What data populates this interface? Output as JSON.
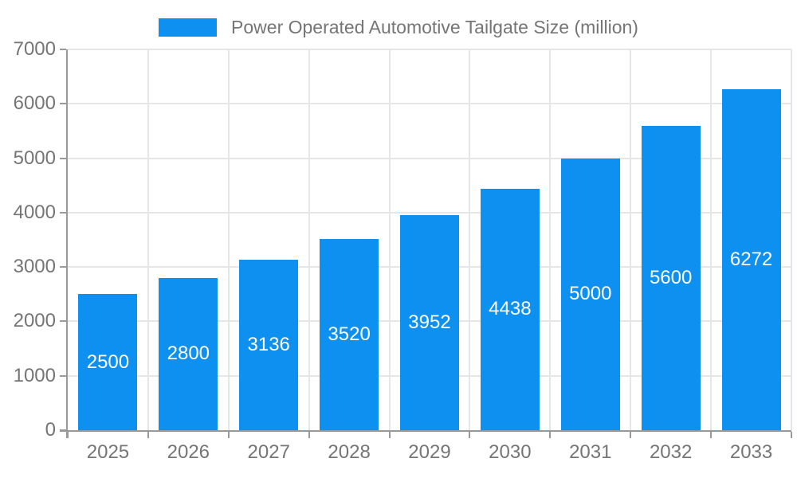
{
  "chart_data": {
    "type": "bar",
    "title": "Power Operated Automotive Tailgate Size (million)",
    "legend": "Power Operated Automotive Tailgate Size (million)",
    "legend_position": "top-center",
    "categories": [
      "2025",
      "2026",
      "2027",
      "2028",
      "2029",
      "2030",
      "2031",
      "2032",
      "2033"
    ],
    "series": [
      {
        "name": "Power Operated Automotive Tailgate Size (million)",
        "values": [
          2500,
          2800,
          3136,
          3520,
          3952,
          4438,
          5000,
          5600,
          6272
        ]
      }
    ],
    "values": [
      2500,
      2800,
      3136,
      3520,
      3952,
      4438,
      5000,
      5600,
      6272
    ],
    "value_labels_shown": true,
    "xlabel": "",
    "ylabel": "",
    "ylim": [
      0,
      7000
    ],
    "y_ticks": [
      0,
      1000,
      2000,
      3000,
      4000,
      5000,
      6000,
      7000
    ],
    "grid": true,
    "colors": {
      "bar": "#0d90f0",
      "value_label": "#ffffff",
      "axis_text": "#757575",
      "grid_line": "#e6e6e6",
      "axis_line": "#999999",
      "background": "#ffffff"
    }
  }
}
